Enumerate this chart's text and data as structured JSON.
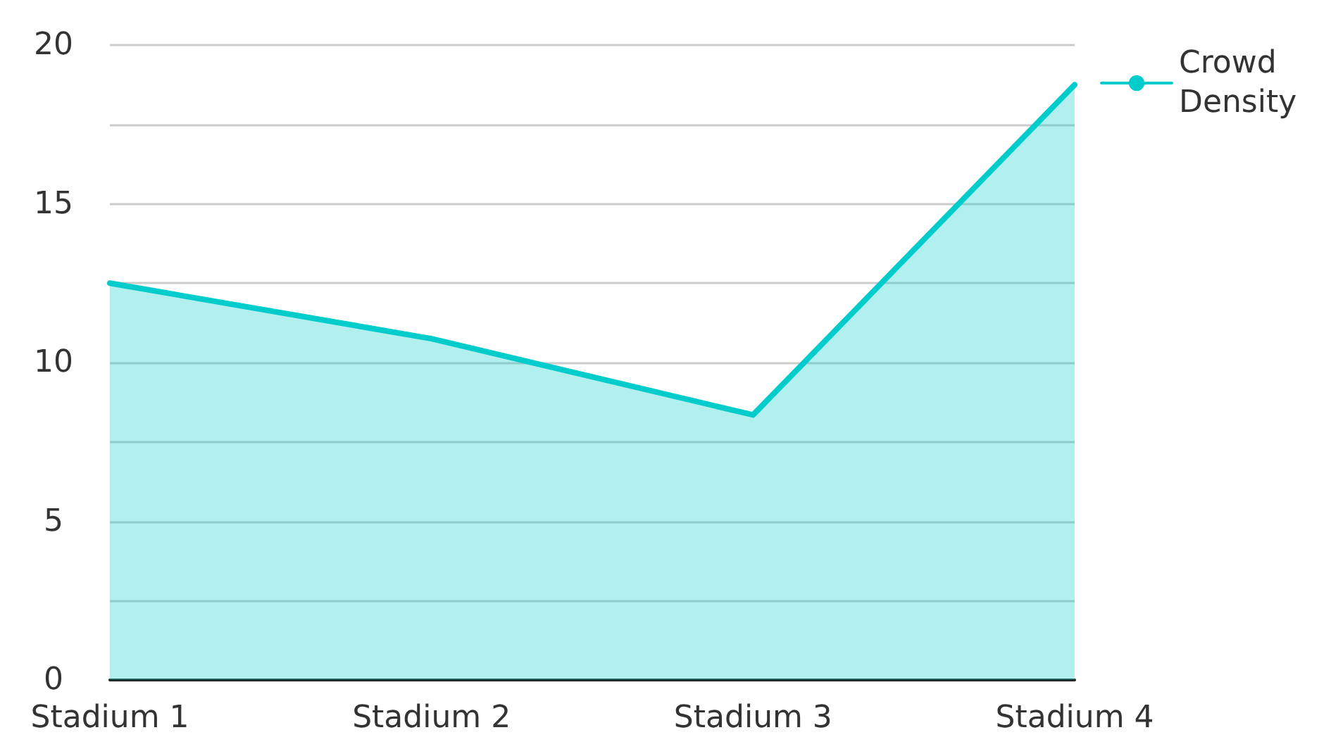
{
  "chart_data": {
    "type": "area",
    "categories": [
      "Stadium 1",
      "Stadium 2",
      "Stadium 3",
      "Stadium 4"
    ],
    "series": [
      {
        "name": "Crowd Density",
        "color": "#00cccc",
        "values": [
          12.5,
          10.75,
          8.35,
          18.75
        ]
      }
    ],
    "ylim": [
      0,
      20
    ],
    "yticks": [
      0,
      {
        "value": 2.5,
        "label": null
      },
      5,
      {
        "value": 7.5,
        "label": null
      },
      10,
      {
        "value": 12.5,
        "label": null
      },
      15,
      {
        "value": 17.5,
        "label": null
      },
      20
    ],
    "grid": "y",
    "legend": "top right",
    "marker": "none"
  }
}
